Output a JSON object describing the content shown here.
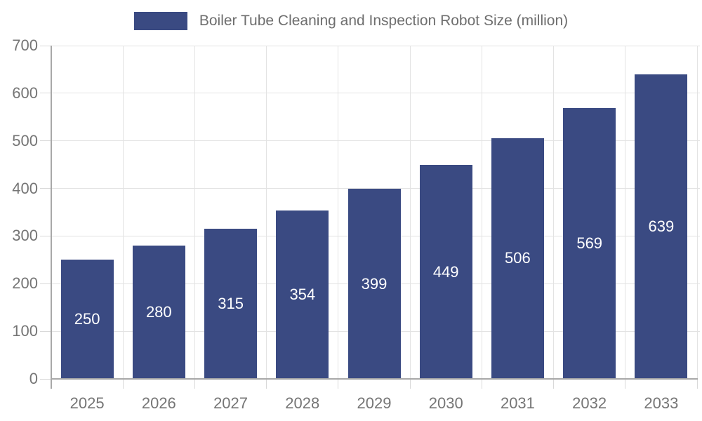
{
  "chart_data": {
    "type": "bar",
    "title": "Boiler Tube Cleaning and Inspection Robot Size (million)",
    "categories": [
      "2025",
      "2026",
      "2027",
      "2028",
      "2029",
      "2030",
      "2031",
      "2032",
      "2033"
    ],
    "series": [
      {
        "name": "Boiler Tube Cleaning and Inspection Robot Size (million)",
        "values": [
          250,
          280,
          315,
          354,
          399,
          449,
          506,
          569,
          639
        ]
      }
    ],
    "value_labels_visible": true,
    "xlabel": "",
    "ylabel": "",
    "ylim": [
      0,
      700
    ],
    "yticks": [
      0,
      100,
      200,
      300,
      400,
      500,
      600,
      700
    ],
    "grid": "horizontal lines at y ticks, vertical lines at category boundaries",
    "legend_position": "top-center",
    "colors": {
      "bar": "#3A4A82",
      "bar_value_text": "#FFFFFF",
      "axis_text": "#757575",
      "legend_text": "#6E6E6E",
      "grid_line": "#E3E3E3",
      "axis_line": "#A8A8A8",
      "background": "#FFFFFF"
    }
  }
}
